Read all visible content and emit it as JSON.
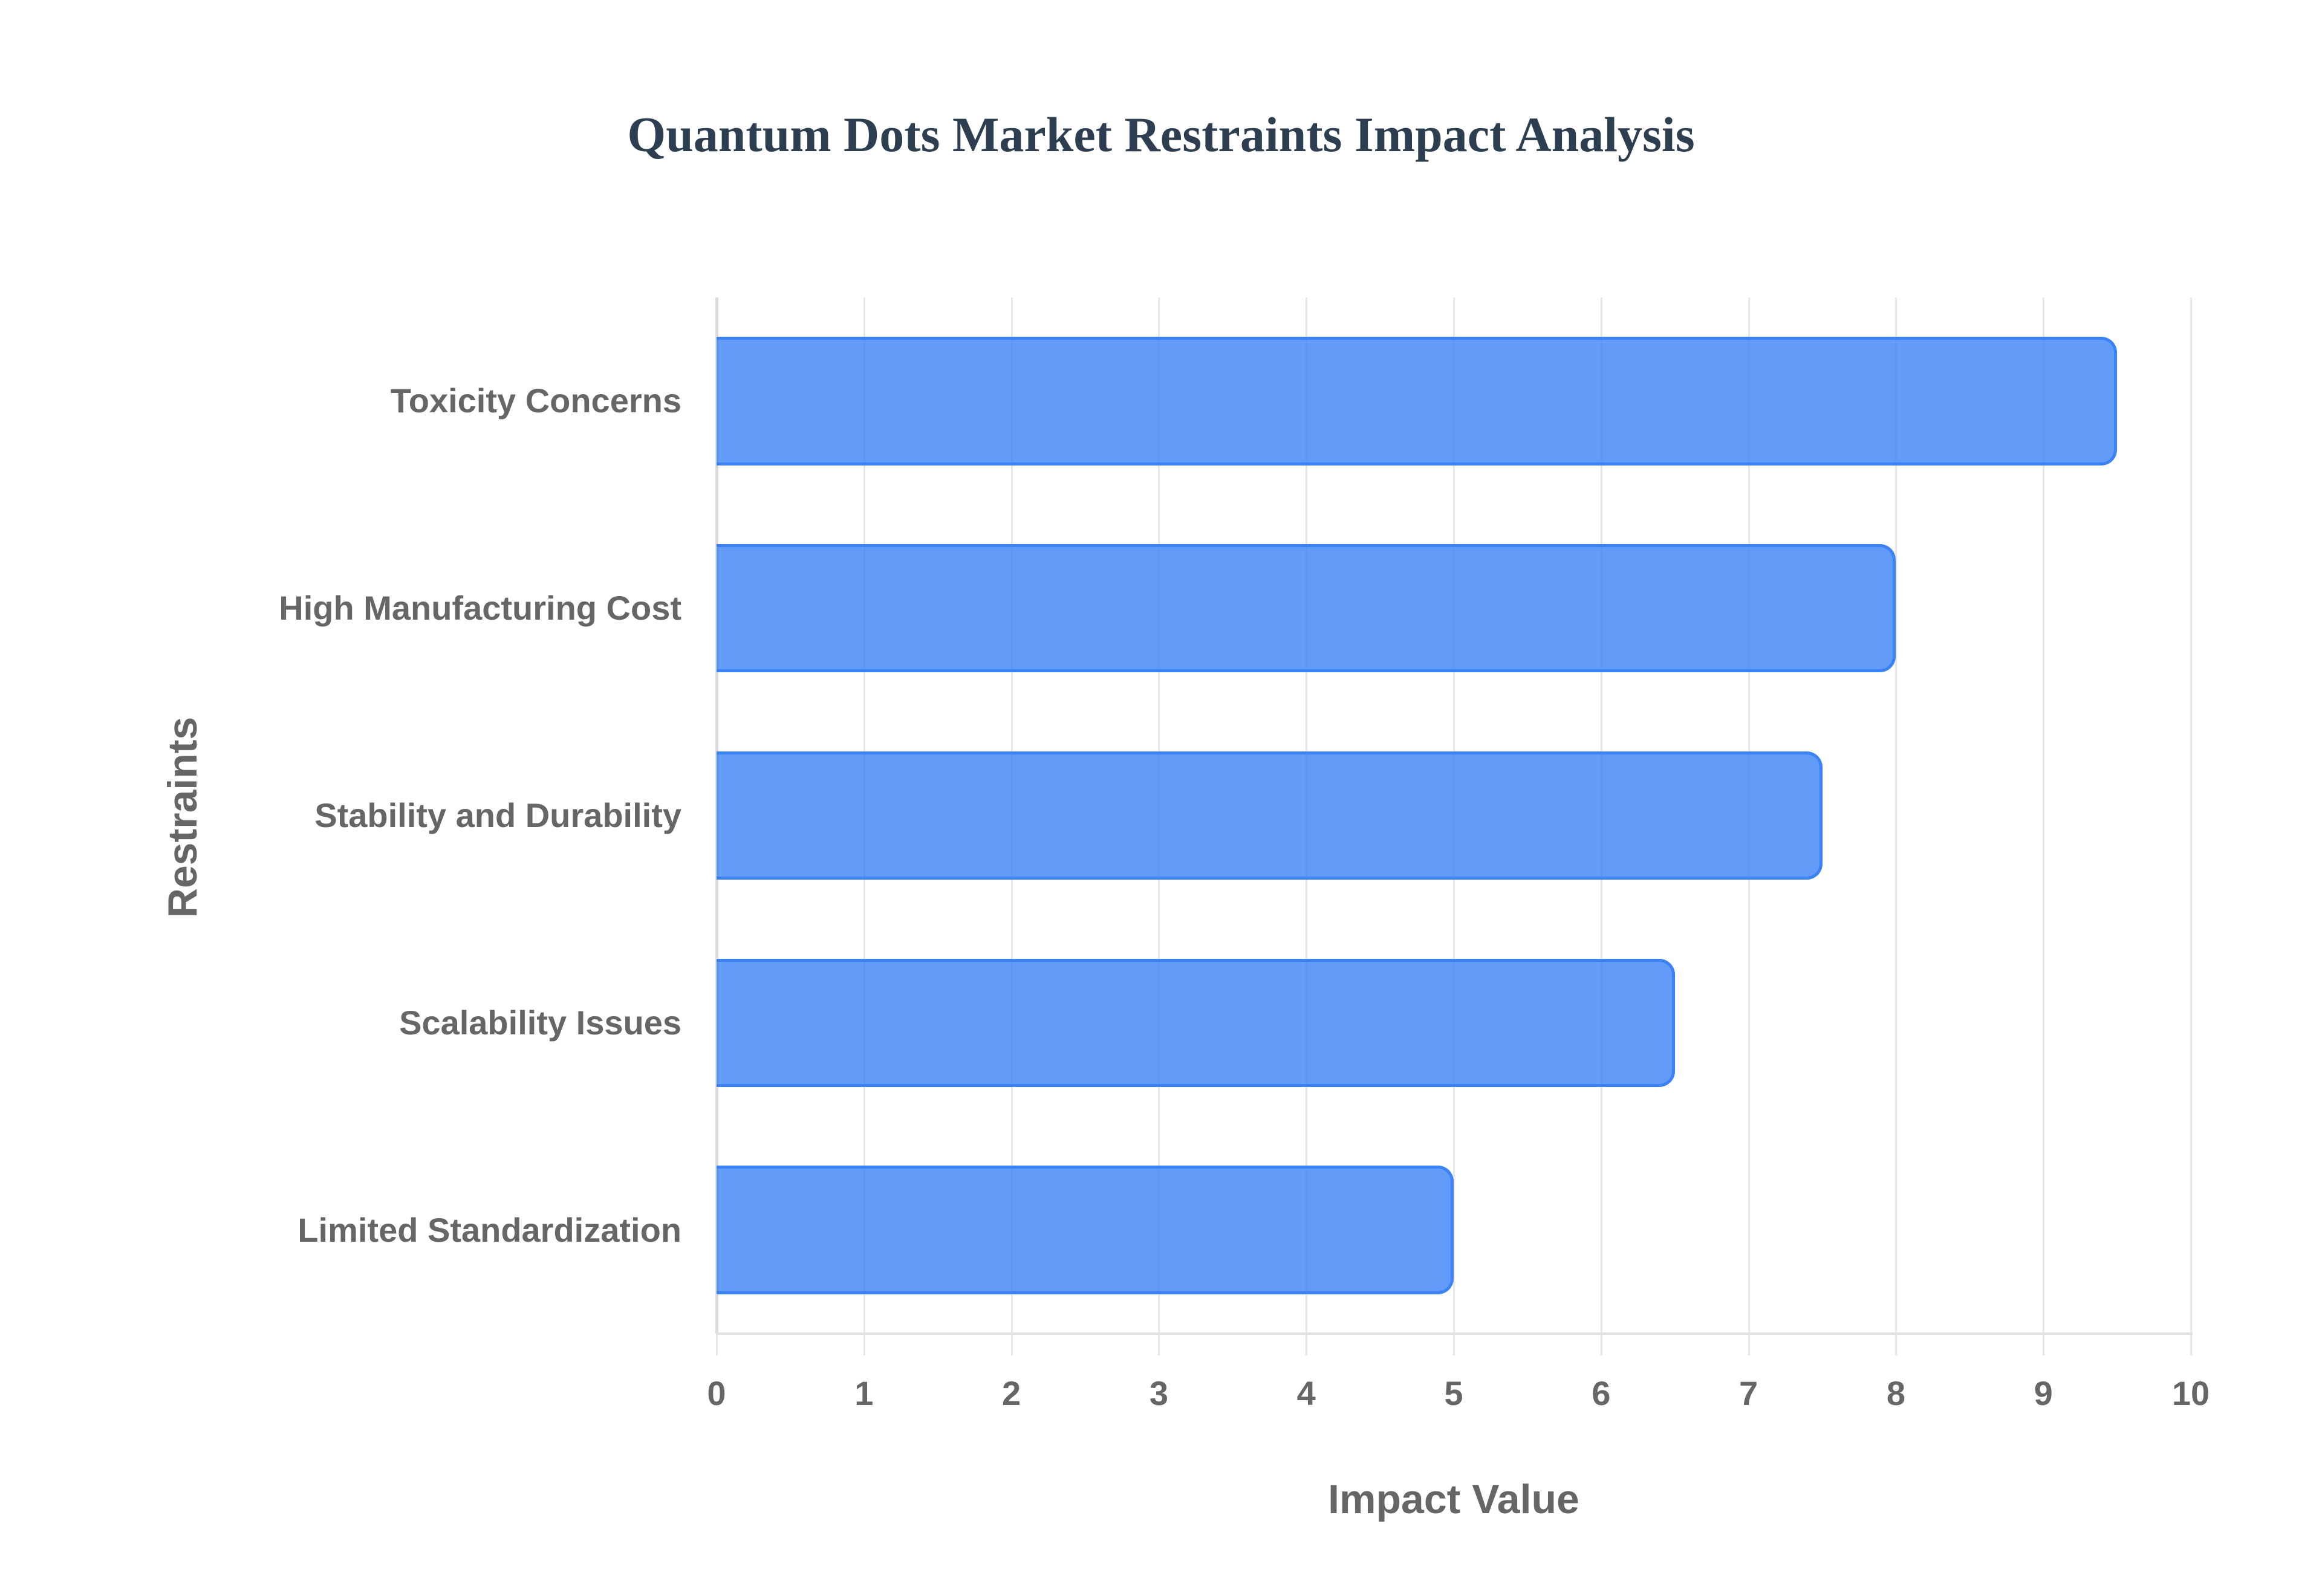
{
  "chart_data": {
    "type": "bar",
    "orientation": "horizontal",
    "title": "Quantum Dots Market Restraints Impact Analysis",
    "xlabel": "Impact Value",
    "ylabel": "Restraints",
    "categories": [
      "Toxicity Concerns",
      "High Manufacturing Cost",
      "Stability and Durability",
      "Scalability Issues",
      "Limited Standardization"
    ],
    "values": [
      9.5,
      8.0,
      7.5,
      6.5,
      5.0
    ],
    "xlim": [
      0,
      10
    ],
    "xticks": [
      "0",
      "1",
      "2",
      "3",
      "4",
      "5",
      "6",
      "7",
      "8",
      "9",
      "10"
    ],
    "grid": true,
    "legend": null,
    "colors": {
      "bar_fill": "rgba(59,130,246,0.8)",
      "bar_border": "#3b82f6",
      "title": "#2c3e50",
      "axis_text": "#666666",
      "grid": "#e6e6e6"
    }
  }
}
